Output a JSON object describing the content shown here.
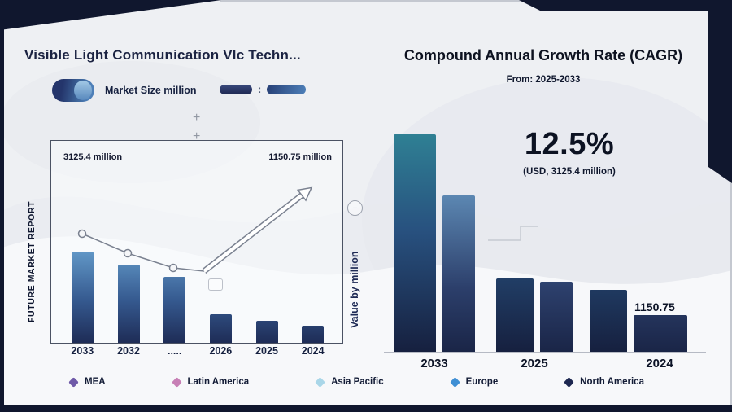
{
  "header": {
    "left_title": "Visible Light Communication Vlc Techn...",
    "right_title": "Compound Annual Growth Rate (CAGR)",
    "right_subtitle": "From: 2025-2033"
  },
  "left_panel": {
    "legend_label": "Market Size million",
    "max_label": "3125.4 million",
    "min_label": "1150.75 million",
    "side_label": "FUTURE MARKET REPORT",
    "axis_label": "Value by million"
  },
  "right_panel": {
    "cagr_value": "12.5%",
    "cagr_caption": "(USD, 3125.4 million)",
    "end_value": "1150.75"
  },
  "decorations": {
    "plus": "+",
    "minus": "−",
    "colon": ":"
  },
  "region_legend": [
    {
      "label": "MEA",
      "color": "#6f5aa8"
    },
    {
      "label": "Latin America",
      "color": "#c77fb5"
    },
    {
      "label": "Asia Pacific",
      "color": "#a9d6e8"
    },
    {
      "label": "Europe",
      "color": "#3f8fd4"
    },
    {
      "label": "North America",
      "color": "#1d2750"
    }
  ],
  "colors": {
    "frame": "#10172e",
    "heading": "#1b2342",
    "left_bar_top": "#639ac9",
    "left_bar_bottom": "#1e2c56",
    "right_bar_teal_top": "#2f8194",
    "right_bar_blue_top": "#5d89b4",
    "right_bar_navy_bottom": "#16203f"
  },
  "chart_data": [
    {
      "type": "bar",
      "title": "Visible Light Communication Vlc Techn... Market Size million",
      "categories": [
        "2033",
        "2032",
        ".....",
        "2026",
        "2025",
        "2024"
      ],
      "values": [
        3125.4,
        2778.1,
        2469.4,
        1456.6,
        1294.6,
        1150.75
      ],
      "xlabel": "",
      "ylabel": "Value by million",
      "ylim": [
        700,
        3200
      ],
      "legend": [
        "Market Size million"
      ],
      "annotations": [
        "3125.4 million",
        "1150.75 million",
        "marker line declining across bars with hand-drawn arrow rising to upper right"
      ]
    },
    {
      "type": "bar",
      "title": "Compound Annual Growth Rate (CAGR) From: 2025-2033",
      "categories": [
        "2033",
        "2025",
        "2024"
      ],
      "series": [
        {
          "name": "series-1",
          "values": [
            3125.4,
            1294.6,
            1150.75
          ]
        },
        {
          "name": "series-2",
          "values": [
            2350,
            1250,
            830
          ]
        }
      ],
      "ylim": [
        360,
        3200
      ],
      "annotations": [
        "CAGR 12.5%",
        "(USD, 3125.4 million)",
        "1150.75 labelled at 2024"
      ]
    }
  ]
}
